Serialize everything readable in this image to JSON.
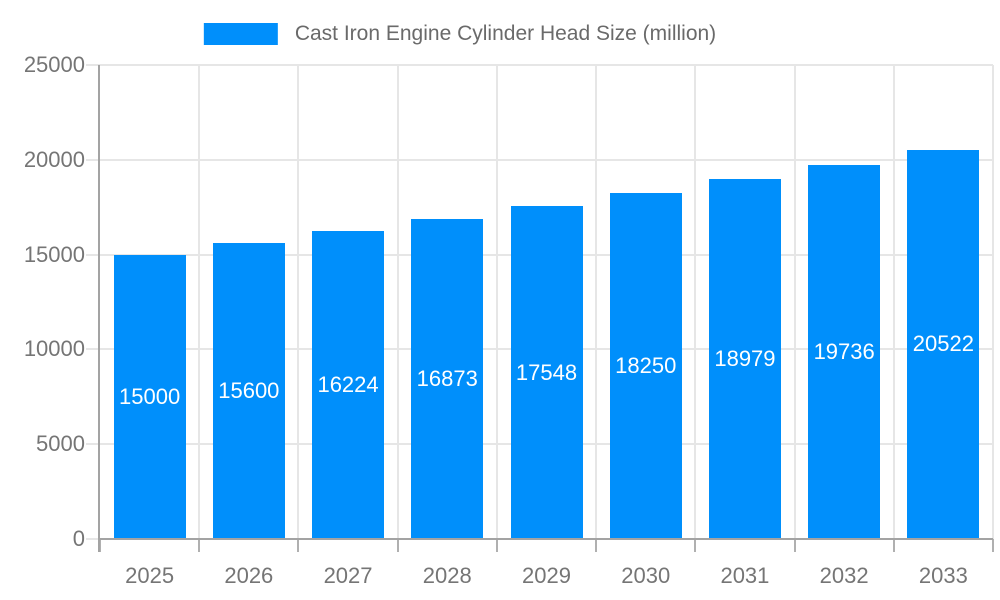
{
  "legend": {
    "label": "Cast Iron Engine Cylinder Head Size (million)"
  },
  "chart_data": {
    "type": "bar",
    "title": "Cast Iron Engine Cylinder Head Size (million)",
    "categories": [
      "2025",
      "2026",
      "2027",
      "2028",
      "2029",
      "2030",
      "2031",
      "2032",
      "2033"
    ],
    "series": [
      {
        "name": "Cast Iron Engine Cylinder Head Size (million)",
        "values": [
          15000,
          15600,
          16224,
          16873,
          17548,
          18250,
          18979,
          19736,
          20522
        ]
      }
    ],
    "xlabel": "",
    "ylabel": "",
    "ylim": [
      0,
      25000
    ],
    "yticks": [
      0,
      5000,
      10000,
      15000,
      20000,
      25000
    ],
    "grid": true,
    "legend_position": "top",
    "value_labels": "inside-middle",
    "colors": {
      "bar": "#008ffb",
      "value_label": "#ffffff",
      "axis_text": "#757575",
      "legend_text": "#6a6a6a",
      "gridline": "#e6e6e6",
      "axis_line": "#a3a3a3",
      "tick_mark": "#b0b0b0"
    }
  }
}
